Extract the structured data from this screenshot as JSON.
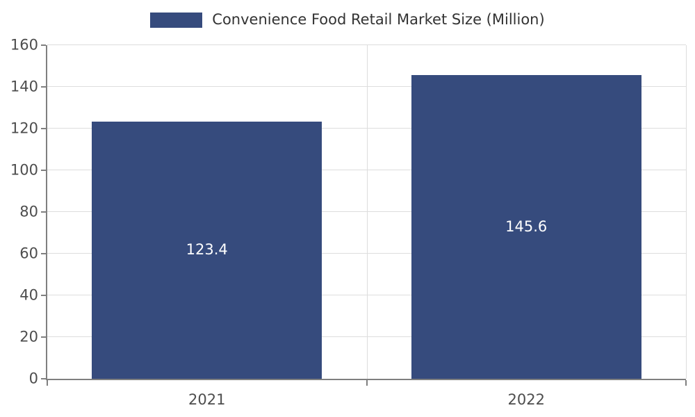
{
  "chart_data": {
    "type": "bar",
    "title": "",
    "legend": "Convenience Food Retail Market Size (Million)",
    "legend_position": "top",
    "categories": [
      "2021",
      "2022"
    ],
    "values": [
      123.4,
      145.6
    ],
    "data_labels": [
      "123.4",
      "145.6"
    ],
    "xlabel": "",
    "ylabel": "",
    "ylim": [
      0,
      160
    ],
    "ytick_step": 20,
    "yticks": [
      0,
      20,
      40,
      60,
      80,
      100,
      120,
      140,
      160
    ],
    "grid": true,
    "data_labels_visible": true
  },
  "colors": {
    "bar": "#364b7d",
    "grid": "#dddddd",
    "axis": "#7f7f7f",
    "tick_text": "#4d4d4d",
    "legend_text": "#333333",
    "data_label": "#ffffff",
    "background": "#ffffff"
  }
}
